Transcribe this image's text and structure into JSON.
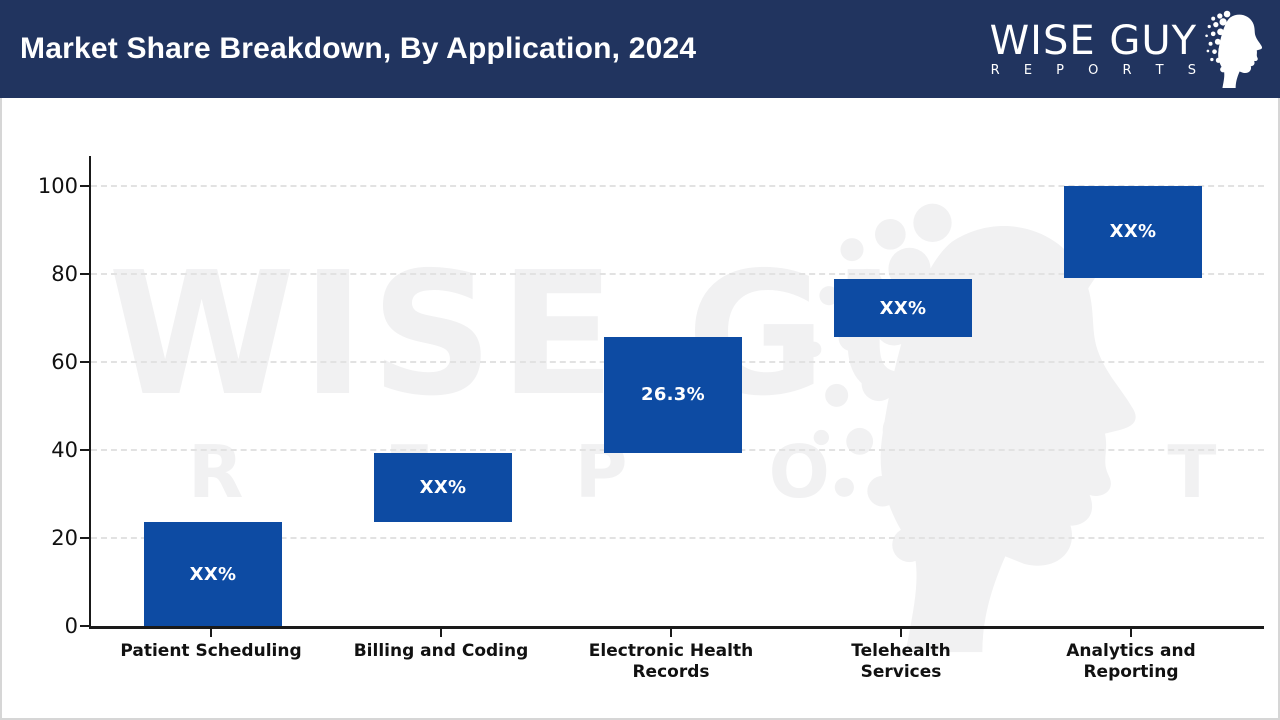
{
  "header": {
    "title": "Market Share Breakdown, By Application, 2024",
    "bg_color": "#21345f",
    "logo": {
      "line1": "WISE GUY",
      "line2": "R E P O R T S"
    }
  },
  "watermark": {
    "line1": "WISE GUY",
    "line2": "R E P O R T S"
  },
  "chart_data": {
    "type": "bar",
    "subtype": "waterfall",
    "title": "Market Share Breakdown, By Application, 2024",
    "xlabel": "",
    "ylabel": "",
    "ylim": [
      0,
      107
    ],
    "yticks": [
      0,
      20,
      40,
      60,
      80,
      100
    ],
    "grid": "horizontal-dashed",
    "legend": "none",
    "bar_color": "#0d4ba3",
    "value_label_color": "#ffffff",
    "categories": [
      "Patient Scheduling",
      "Billing and Coding",
      "Electronic Health Records",
      "Telehealth Services",
      "Analytics and Reporting"
    ],
    "category_lines": [
      [
        "Patient Scheduling"
      ],
      [
        "Billing and Coding"
      ],
      [
        "Electronic Health",
        "Records"
      ],
      [
        "Telehealth",
        "Services"
      ],
      [
        "Analytics and",
        "Reporting"
      ]
    ],
    "segments": [
      {
        "category": "Patient Scheduling",
        "start": 0,
        "end": 23.6,
        "height": 23.6,
        "label": "XX%"
      },
      {
        "category": "Billing and Coding",
        "start": 23.6,
        "end": 39.3,
        "height": 15.7,
        "label": "XX%"
      },
      {
        "category": "Electronic Health Records",
        "start": 39.4,
        "end": 65.7,
        "height": 26.3,
        "label": "26.3%"
      },
      {
        "category": "Telehealth Services",
        "start": 65.7,
        "end": 78.8,
        "height": 13.1,
        "label": "XX%"
      },
      {
        "category": "Analytics and Reporting",
        "start": 79.1,
        "end": 100,
        "height": 20.9,
        "label": "XX%"
      }
    ]
  }
}
